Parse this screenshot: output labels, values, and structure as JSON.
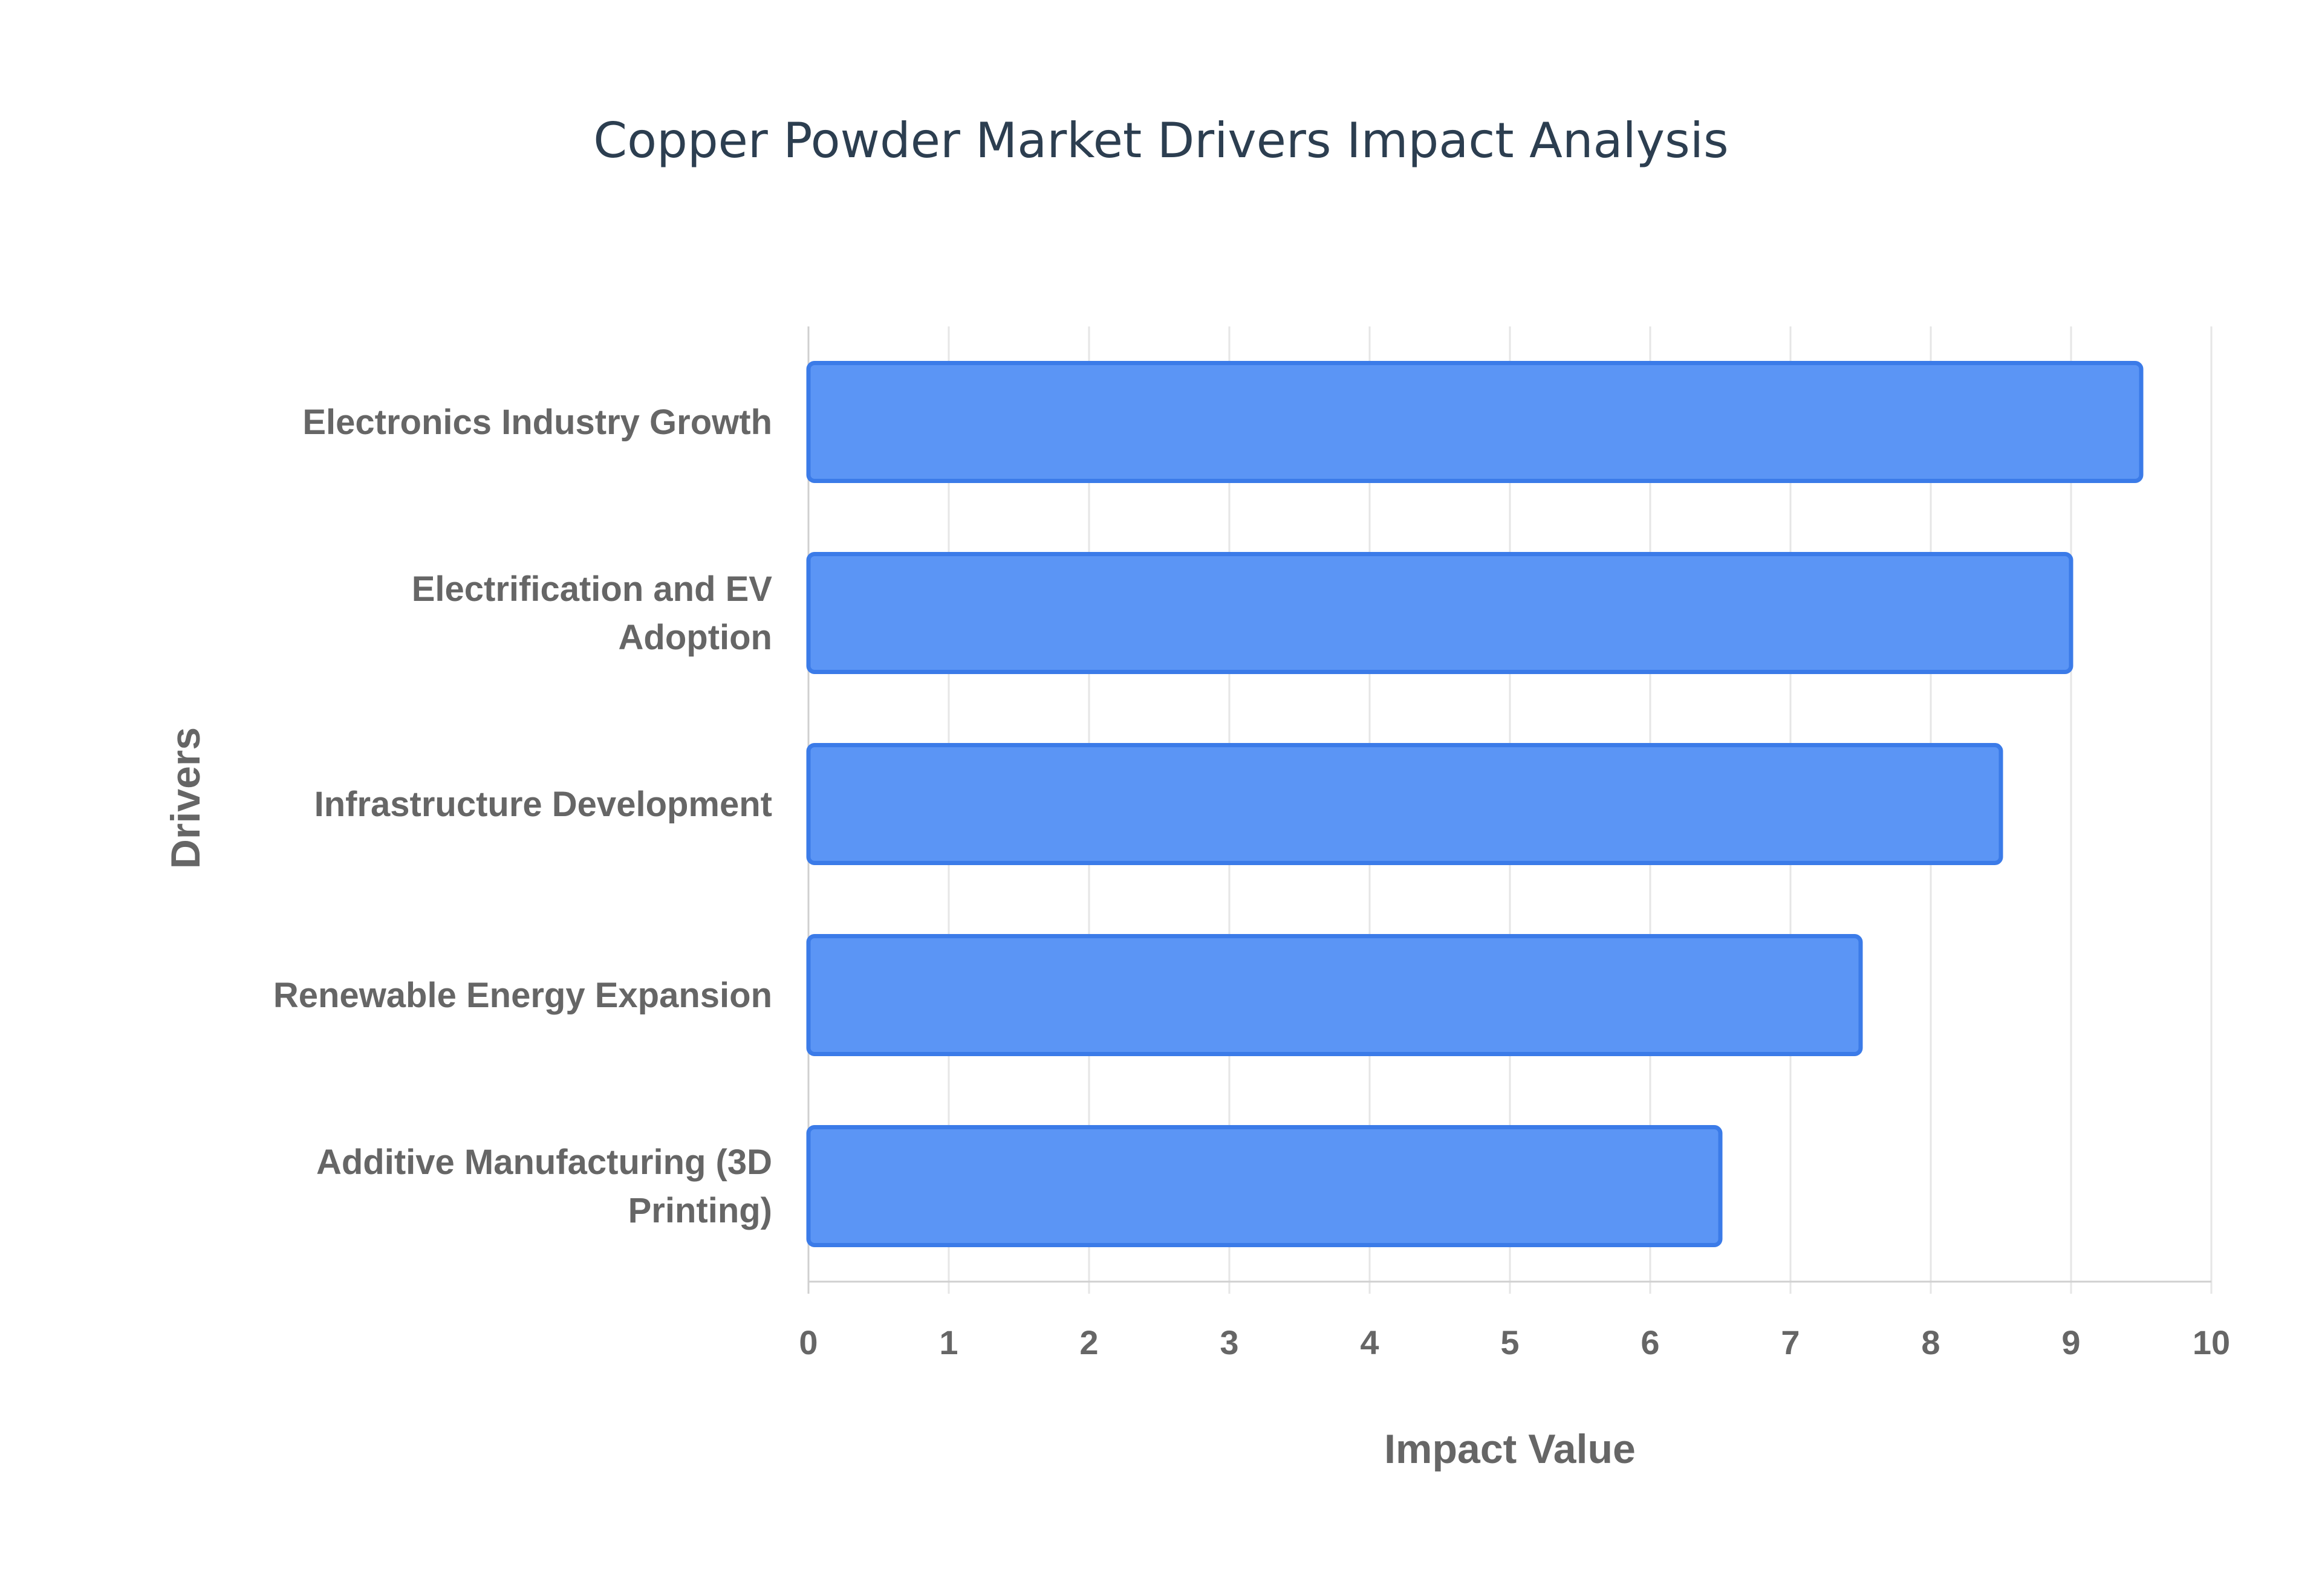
{
  "chart_data": {
    "type": "bar",
    "orientation": "horizontal",
    "title": "Copper Powder Market Drivers Impact Analysis",
    "xlabel": "Impact Value",
    "ylabel": "Drivers",
    "categories": [
      [
        "Electronics Industry Growth"
      ],
      [
        "Electrification and EV",
        "Adoption"
      ],
      [
        "Infrastructure Development"
      ],
      [
        "Renewable Energy Expansion"
      ],
      [
        "Additive Manufacturing (3D",
        "Printing)"
      ]
    ],
    "values": [
      9.5,
      9.0,
      8.5,
      7.5,
      6.5
    ],
    "xlim": [
      0,
      10
    ],
    "xticks": [
      0,
      1,
      2,
      3,
      4,
      5,
      6,
      7,
      8,
      9,
      10
    ],
    "grid": true,
    "legend": "none",
    "colors": {
      "bar_fill": "#5b95f5",
      "bar_border": "#3b7be8",
      "title": "#2c3e50",
      "text": "#666666",
      "grid": "#e6e6e6"
    }
  }
}
